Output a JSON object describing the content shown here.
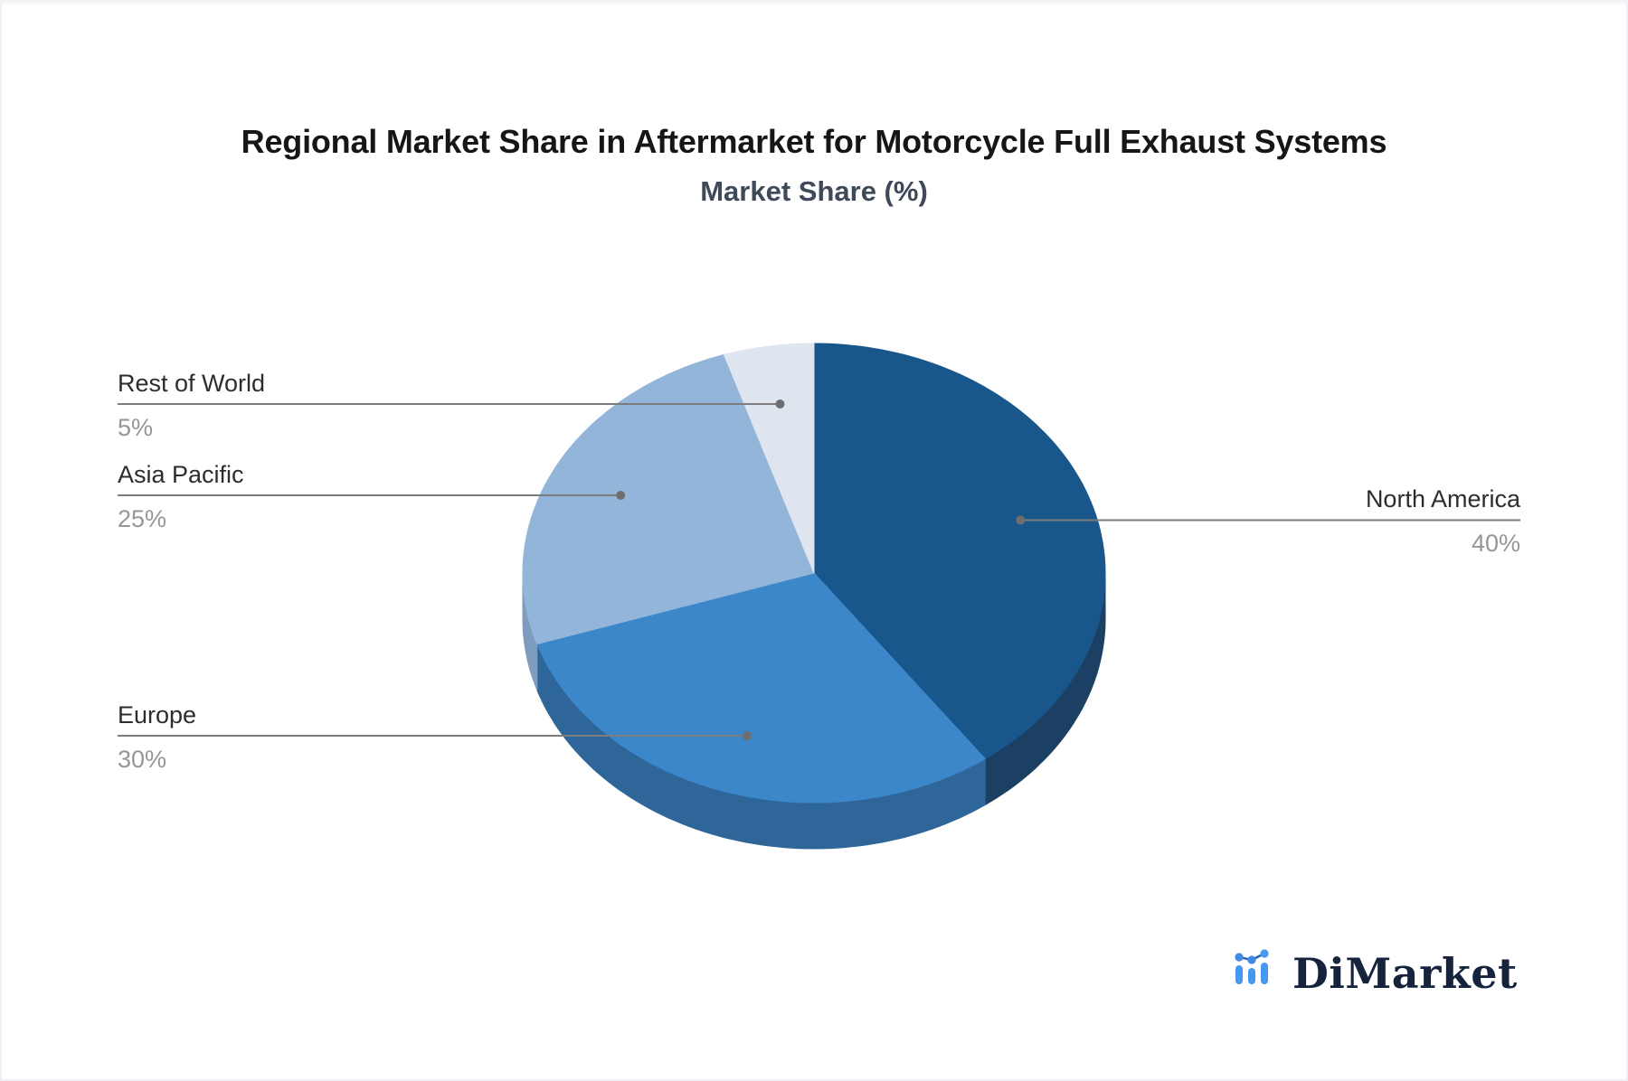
{
  "page": {
    "title": "Regional Market Share in Aftermarket for Motorcycle Full Exhaust Systems",
    "subtitle": "Market Share (%)"
  },
  "chart_data": {
    "type": "pie",
    "style": "3d",
    "title": "Regional Market Share in Aftermarket for Motorcycle Full Exhaust Systems",
    "subtitle": "Market Share (%)",
    "unit": "%",
    "start_angle_deg": 0,
    "direction": "clockwise",
    "legend_position": "callout-labels",
    "slices": [
      {
        "label": "North America",
        "value": 40,
        "pct_label": "40%",
        "color": "#19568C",
        "side_color": "#1B4064",
        "callout_side": "right"
      },
      {
        "label": "Europe",
        "value": 30,
        "pct_label": "30%",
        "color": "#3C86CA",
        "side_color": "#2F669A",
        "callout_side": "left"
      },
      {
        "label": "Asia Pacific",
        "value": 25,
        "pct_label": "25%",
        "color": "#92B5D9",
        "side_color": "#7E9CBD",
        "callout_side": "left"
      },
      {
        "label": "Rest of World",
        "value": 5,
        "pct_label": "5%",
        "color": "#DFE5EE",
        "callout_side": "left"
      }
    ],
    "callout_line_color": "#7d7d7d",
    "callout_dot_color": "#6e6e6e",
    "label_color": "#2d2d2d",
    "pct_color": "#969696"
  },
  "branding": {
    "logo_text": "DiMarket",
    "logo_icon": "bar-chart-trend-icon"
  }
}
